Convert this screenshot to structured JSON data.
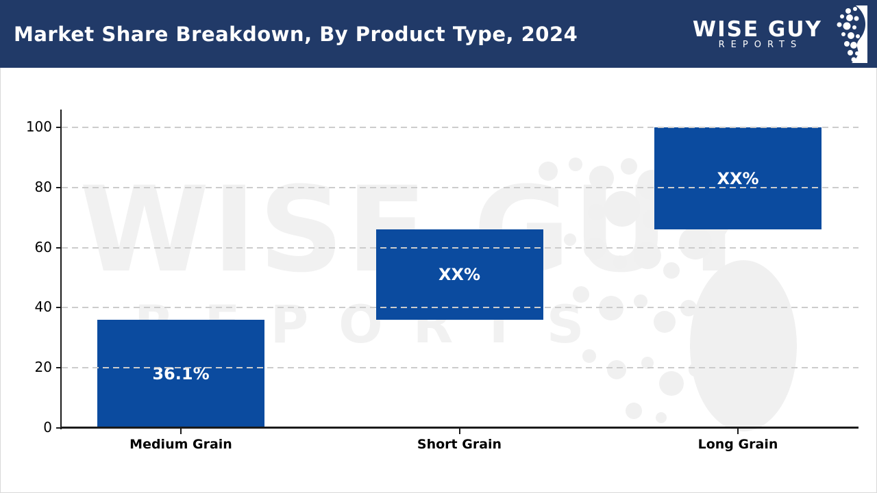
{
  "header": {
    "title": "Market Share Breakdown, By Product Type, 2024",
    "logo": {
      "wordmark": "WISE GUY",
      "subtext": "REPORTS"
    }
  },
  "watermark": {
    "line1": "WISE GUY",
    "line2": "REPORTS"
  },
  "chart_data": {
    "type": "bar",
    "subtype": "waterfall-floating-bars",
    "title": "Market Share Breakdown, By Product Type, 2024",
    "xlabel": "",
    "ylabel": "",
    "categories": [
      "Medium Grain",
      "Short Grain",
      "Long Grain"
    ],
    "segments": [
      {
        "category": "Medium Grain",
        "start": 0,
        "end": 36.1,
        "label": "36.1%"
      },
      {
        "category": "Short Grain",
        "start": 36.1,
        "end": 66,
        "label": "XX%"
      },
      {
        "category": "Long Grain",
        "start": 66,
        "end": 100,
        "label": "XX%"
      }
    ],
    "yticks": [
      0,
      20,
      40,
      60,
      80,
      100
    ],
    "ylim": [
      0,
      106
    ],
    "grid": "dashed-horizontal",
    "legend": "none",
    "bar_color": "#0b4b9f",
    "bar_label_color": "#ffffff"
  },
  "colors": {
    "header_bg": "#213a68",
    "text_on_header": "#ffffff",
    "axis": "#1a1a1a",
    "grid": "#cccccc",
    "watermark": "#f1f1f1",
    "page_bg": "#ffffff"
  }
}
